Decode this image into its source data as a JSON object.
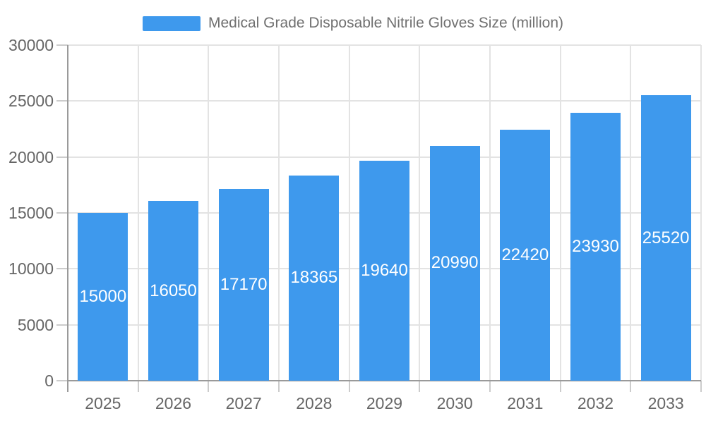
{
  "legend": {
    "label": "Medical Grade Disposable Nitrile Gloves Size (million)"
  },
  "chart_data": {
    "type": "bar",
    "title": "Medical Grade Disposable Nitrile Gloves Size (million)",
    "series_name": "Medical Grade Disposable Nitrile Gloves Size (million)",
    "categories": [
      "2025",
      "2026",
      "2027",
      "2028",
      "2029",
      "2030",
      "2031",
      "2032",
      "2033"
    ],
    "values": [
      15000,
      16050,
      17170,
      18365,
      19640,
      20990,
      22420,
      23930,
      25520
    ],
    "value_labels": [
      "15000",
      "16050",
      "17170",
      "18365",
      "19640",
      "20990",
      "22420",
      "23930",
      "25520"
    ],
    "xlabel": "",
    "ylabel": "",
    "ylim": [
      0,
      30000
    ],
    "yticks": [
      0,
      5000,
      10000,
      15000,
      20000,
      25000,
      30000
    ],
    "ytick_labels": [
      "0",
      "5000",
      "10000",
      "15000",
      "20000",
      "25000",
      "30000"
    ],
    "grid": true,
    "legend_position": "top-center",
    "value_label_position": "inside-center",
    "colors": {
      "bar": "#3E99ED",
      "bar_value_text": "#ffffff",
      "axis_text": "#666666",
      "legend_text": "#707070",
      "gridline": "#e3e3e3",
      "axis_line": "#9a9a9a",
      "tick": "#cccccc",
      "background": "#ffffff"
    }
  }
}
